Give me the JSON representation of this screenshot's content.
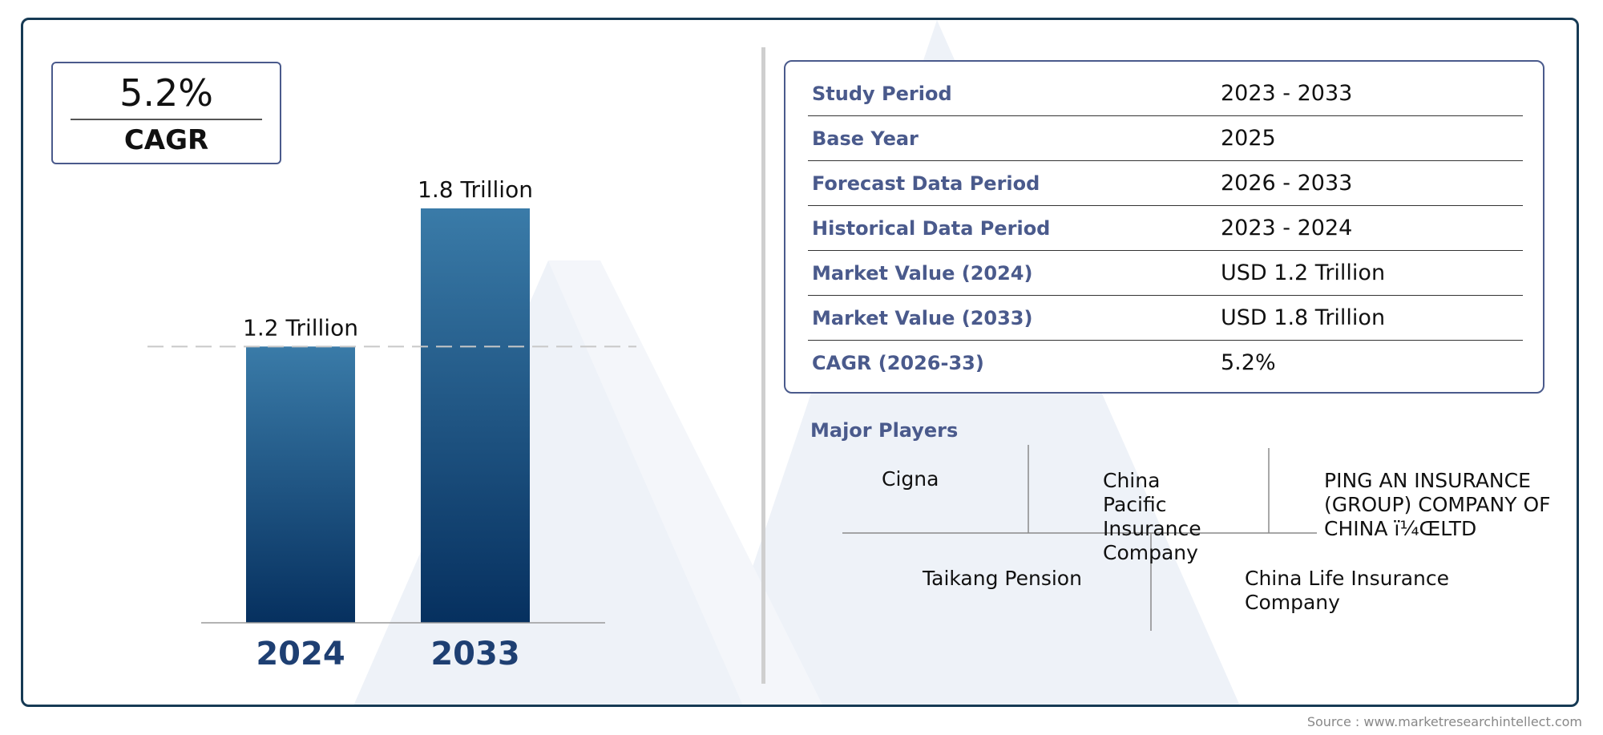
{
  "cagr": {
    "value": "5.2%",
    "label": "CAGR"
  },
  "chart_data": {
    "type": "bar",
    "categories": [
      "2024",
      "2033"
    ],
    "values": [
      1.2,
      1.8
    ],
    "data_labels": [
      "1.2 Trillion",
      "1.8 Trillion"
    ],
    "unit": "Trillion",
    "ylim": [
      0,
      1.8
    ],
    "grid": false,
    "reference_line": 1.2,
    "colors": {
      "bar_top": "#3a7ba8",
      "bar_bottom": "#06305f",
      "category_label": "#1e3f72"
    }
  },
  "market_info": {
    "rows": [
      {
        "label": "Study Period",
        "value": "2023 - 2033"
      },
      {
        "label": "Base Year",
        "value": "2025"
      },
      {
        "label": "Forecast Data Period",
        "value": "2026 - 2033"
      },
      {
        "label": "Historical Data Period",
        "value": "2023 - 2024"
      },
      {
        "label": "Market Value (2024)",
        "value": "USD 1.2 Trillion"
      },
      {
        "label": "Market Value (2033)",
        "value": "USD 1.8 Trillion"
      },
      {
        "label": "CAGR (2026-33)",
        "value": "5.2%"
      }
    ]
  },
  "players": {
    "title": "Major Players",
    "names": [
      "Cigna",
      "China Pacific Insurance Company",
      "PING AN INSURANCE (GROUP) COMPANY OF CHINA ï¼ŒLTD",
      "Taikang Pension",
      "China Life Insurance Company"
    ]
  },
  "source": "Source : www.marketresearchintellect.com",
  "colors": {
    "frame": "#163a54",
    "accent": "#4a5a8c",
    "watermark": "#eef2f8"
  }
}
